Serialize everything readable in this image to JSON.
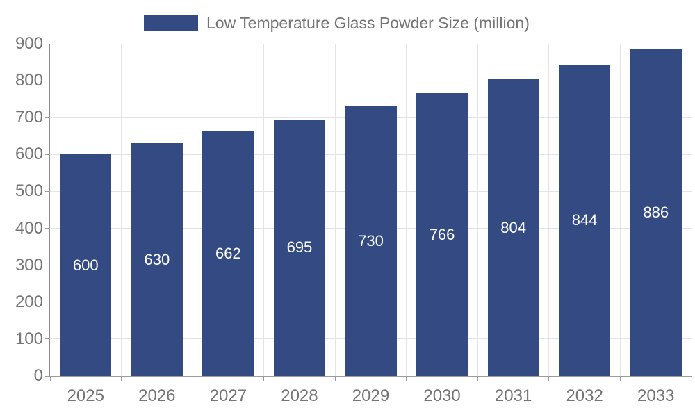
{
  "legend": {
    "label": "Low Temperature Glass Powder Size (million)"
  },
  "colors": {
    "bar": "#344a82",
    "value_label": "#ffffff",
    "axis_text": "#757575",
    "grid": "#e3e3e3",
    "axis_line": "#9c9c9c"
  },
  "chart_data": {
    "type": "bar",
    "title": "",
    "xlabel": "",
    "ylabel": "",
    "categories": [
      "2025",
      "2026",
      "2027",
      "2028",
      "2029",
      "2030",
      "2031",
      "2032",
      "2033"
    ],
    "values": [
      600,
      630,
      662,
      695,
      730,
      766,
      804,
      844,
      886
    ],
    "series_name": "Low Temperature Glass Powder Size (million)",
    "ylim": [
      0,
      900
    ],
    "ytick_step": 100,
    "yticks": [
      0,
      100,
      200,
      300,
      400,
      500,
      600,
      700,
      800,
      900
    ],
    "grid": true,
    "legend_position": "top",
    "value_labels": "centered-inside-bars"
  }
}
